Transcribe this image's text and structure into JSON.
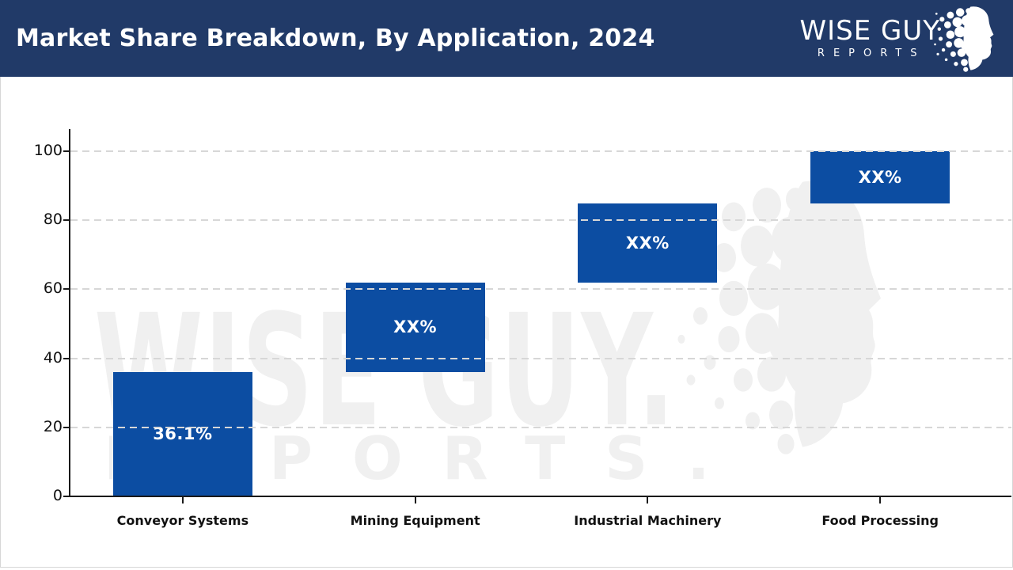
{
  "header": {
    "title": "Market Share Breakdown, By Application, 2024",
    "logo": {
      "brand": "WISE GUY",
      "sub": "REPORTS"
    }
  },
  "watermark": {
    "line1": "WISE GUY.",
    "line2": "REPORTS."
  },
  "chart_data": {
    "type": "bar",
    "variant": "waterfall-floating-bars",
    "title": "Market Share Breakdown, By Application, 2024",
    "categories": [
      "Conveyor Systems",
      "Mining Equipment",
      "Industrial Machinery",
      "Food Processing"
    ],
    "segments": [
      {
        "category": "Conveyor Systems",
        "start": 0,
        "end": 36.1,
        "label": "36.1%"
      },
      {
        "category": "Mining Equipment",
        "start": 36.1,
        "end": 62,
        "label": "XX%"
      },
      {
        "category": "Industrial Machinery",
        "start": 62,
        "end": 85,
        "label": "XX%"
      },
      {
        "category": "Food Processing",
        "start": 85,
        "end": 100,
        "label": "XX%"
      }
    ],
    "yticks": [
      0,
      20,
      40,
      60,
      80,
      100
    ],
    "ylim": [
      0,
      106
    ],
    "xlabel": "",
    "ylabel": "",
    "grid": true,
    "grid_style": "dashed",
    "legend": false,
    "bar_color": "#0c4da2",
    "value_suffix": "%"
  },
  "colors": {
    "header_bg": "#213a68",
    "bar": "#0c4da2",
    "grid": "#d7d7d7",
    "axis": "#1a1a1a",
    "text": "#111111",
    "watermark": "#f0f0f0",
    "card_border": "#d6d6d6"
  }
}
